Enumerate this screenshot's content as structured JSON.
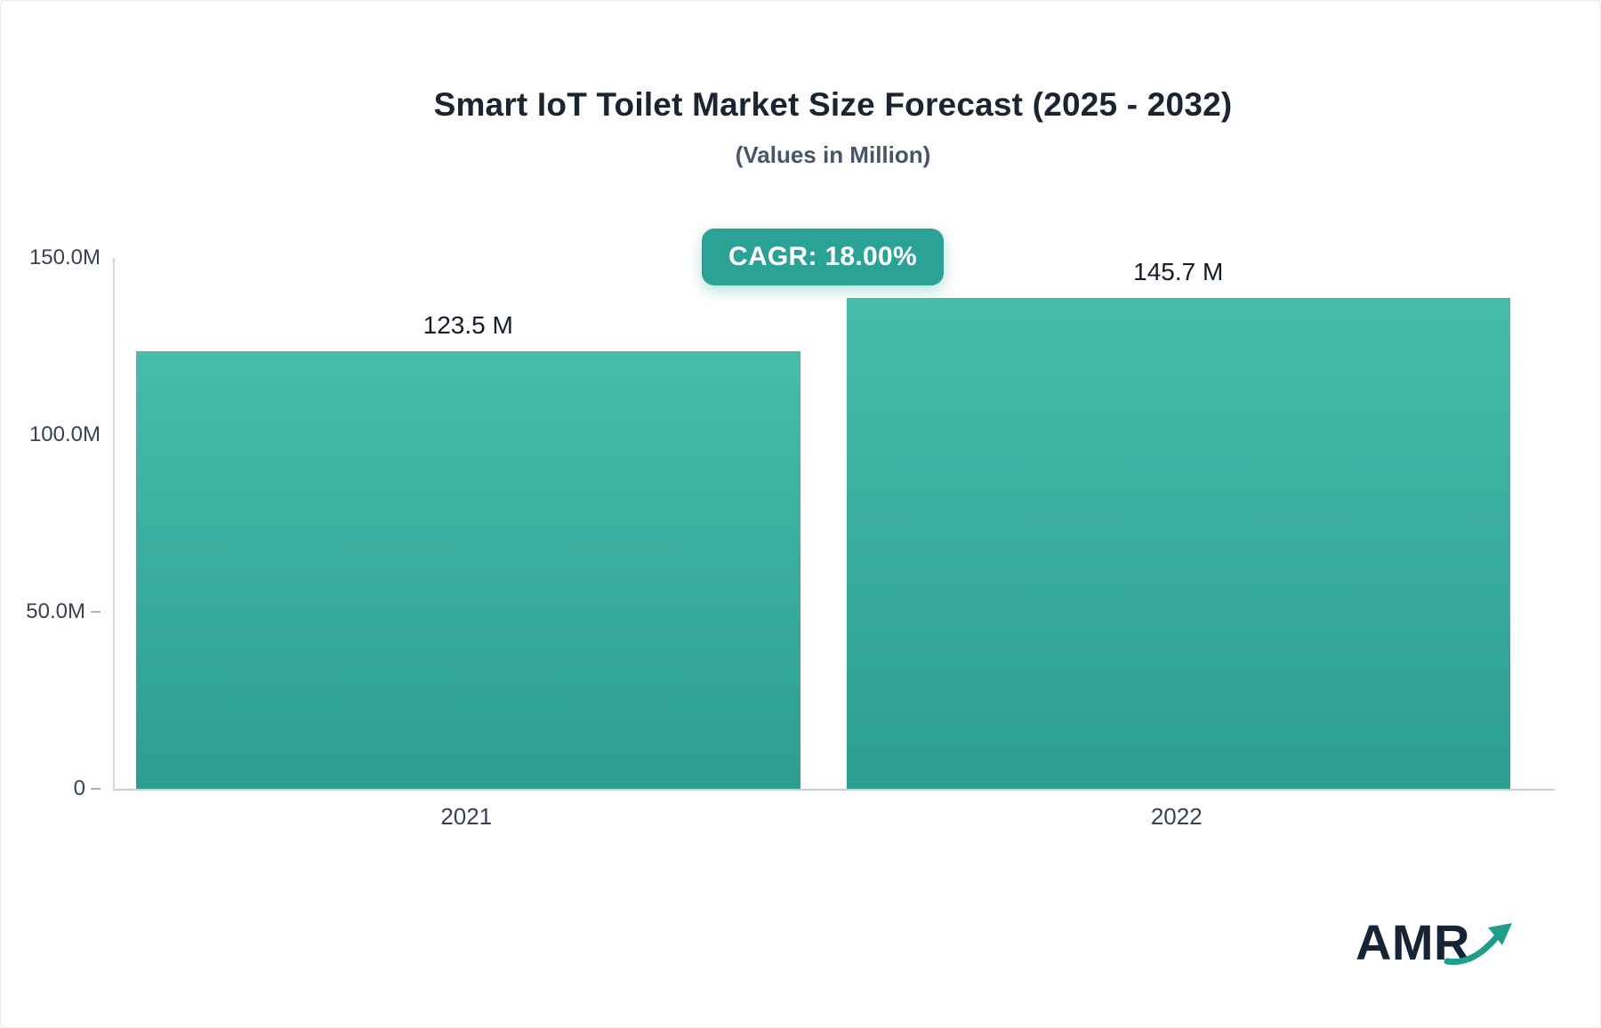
{
  "header": {
    "title": "Smart IoT Toilet Market Size Forecast (2025 - 2032)",
    "subtitle": "(Values in Million)",
    "cagr_badge": "CAGR: 18.00%"
  },
  "chart_data": {
    "type": "bar",
    "title": "Smart IoT Toilet Market Size Forecast (2025 - 2032)",
    "subtitle": "(Values in Million)",
    "categories": [
      "2021",
      "2022"
    ],
    "values": [
      123.5,
      145.7
    ],
    "value_labels": [
      "123.5 M",
      "145.7 M"
    ],
    "unit": "Million",
    "cagr_label": "CAGR: 18.00%",
    "xlabel": "",
    "ylabel": "",
    "ylim": [
      0,
      150
    ],
    "ytick_labels": [
      "150.0M",
      "100.0M",
      "50.0M",
      "0"
    ],
    "grid": false,
    "legend": "none",
    "bar_gradient_top": "#48bcab",
    "bar_gradient_bottom": "#2b9e90"
  },
  "branding": {
    "logo_text": "AMR"
  },
  "colors": {
    "accent_teal": "#2aa396",
    "title_text": "#1b2430",
    "axis_text": "#39424e",
    "axis_line": "#d2d7dc"
  }
}
